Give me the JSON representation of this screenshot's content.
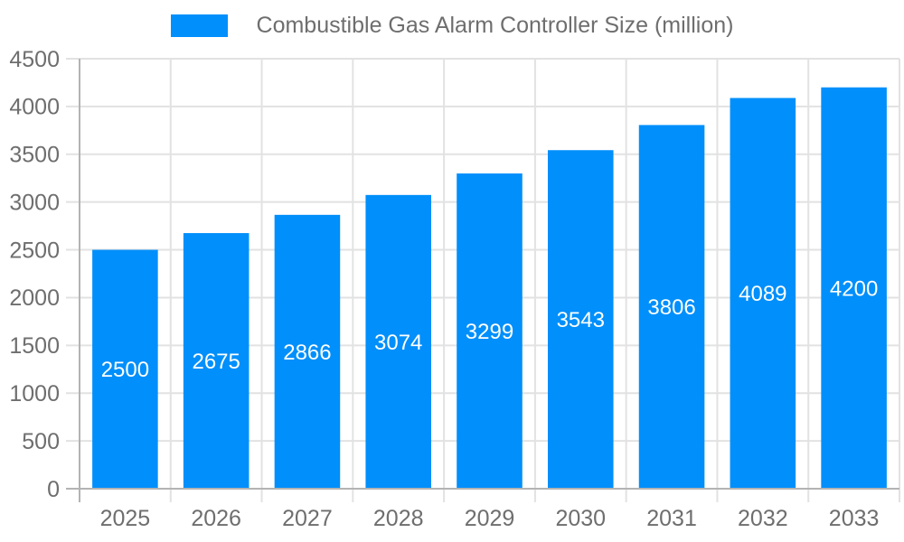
{
  "legend": {
    "label": "Combustible Gas Alarm Controller Size (million)"
  },
  "chart_data": {
    "type": "bar",
    "title": "Combustible Gas Alarm Controller Size (million)",
    "categories": [
      "2025",
      "2026",
      "2027",
      "2028",
      "2029",
      "2030",
      "2031",
      "2032",
      "2033"
    ],
    "values": [
      2500,
      2675,
      2866,
      3074,
      3299,
      3543,
      3806,
      4089,
      4200
    ],
    "xlabel": "",
    "ylabel": "",
    "ylim": [
      0,
      4500
    ],
    "ytick_step": 500,
    "grid": "both",
    "legend_position": "top-center",
    "bar_color": "#008FFB",
    "value_label_color": "#ffffff",
    "axis_label_color": "#6e6e6e",
    "grid_color": "#e2e2e2",
    "axis_line_color": "#b3b3b3"
  }
}
